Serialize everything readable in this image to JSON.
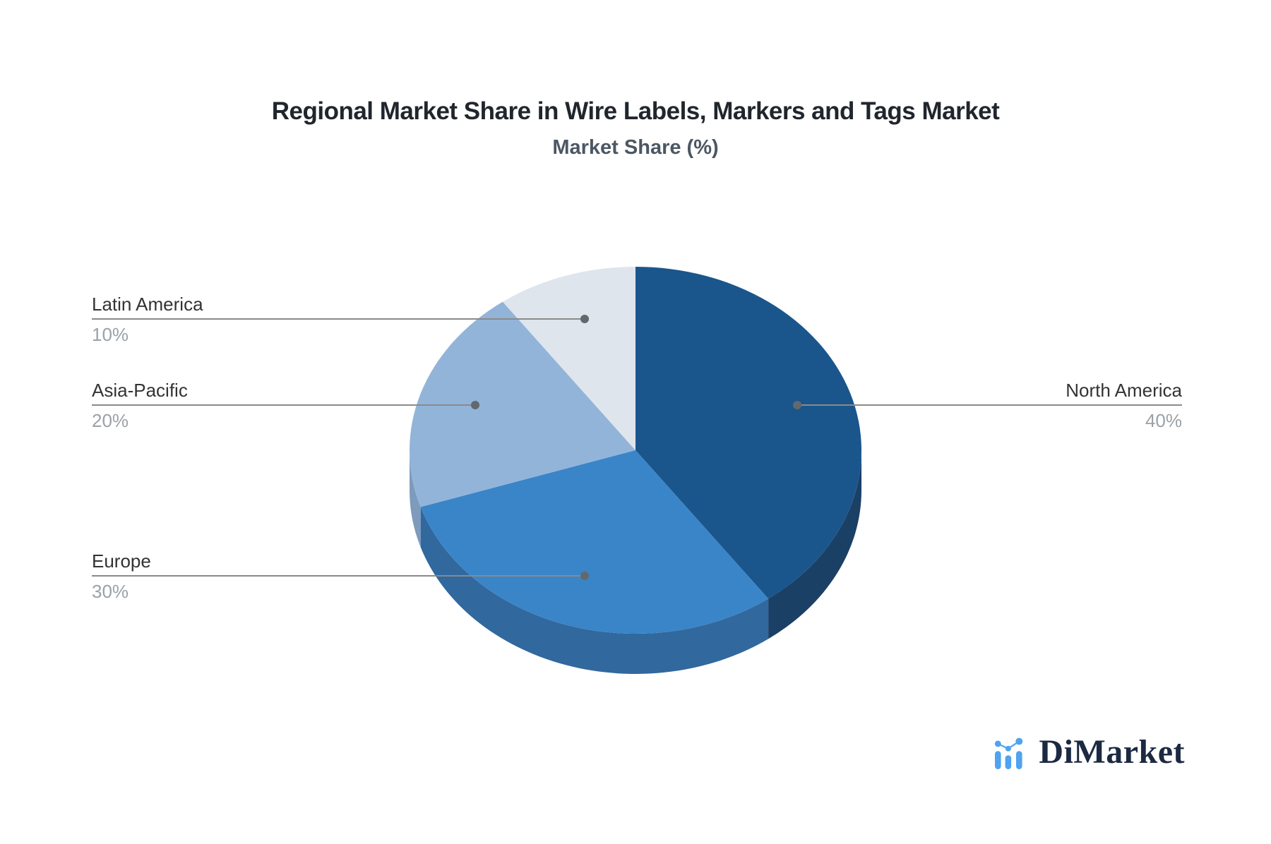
{
  "header": {
    "title": "Regional Market Share in Wire Labels, Markers and Tags Market",
    "subtitle": "Market Share (%)"
  },
  "chart_data": {
    "type": "pie",
    "style": "3d",
    "title": "Regional Market Share in Wire Labels, Markers and Tags Market",
    "subtitle": "Market Share (%)",
    "unit": "%",
    "start_angle_deg": 0,
    "direction": "clockwise",
    "legend_position": "none",
    "leader_line_color": "#8a8a8a",
    "leader_dot_color": "#63686d",
    "segments": [
      {
        "label": "North America",
        "value": 40,
        "display": "40%",
        "color": "#1A568C",
        "side_color": "#1B4066",
        "label_side": "right"
      },
      {
        "label": "Europe",
        "value": 30,
        "display": "30%",
        "color": "#3A85C8",
        "side_color": "#31689E",
        "label_side": "left"
      },
      {
        "label": "Asia-Pacific",
        "value": 20,
        "display": "20%",
        "color": "#92B4D9",
        "side_color": "#7E9ABC",
        "label_side": "left"
      },
      {
        "label": "Latin America",
        "value": 10,
        "display": "10%",
        "color": "#DFE5ED",
        "side_color": "#C3CDDB",
        "label_side": "left"
      }
    ]
  },
  "branding": {
    "name": "DiMarket",
    "icon": "bar-line-chart-icon",
    "icon_color": "#4FA3F0",
    "text_color": "#1B2942"
  }
}
